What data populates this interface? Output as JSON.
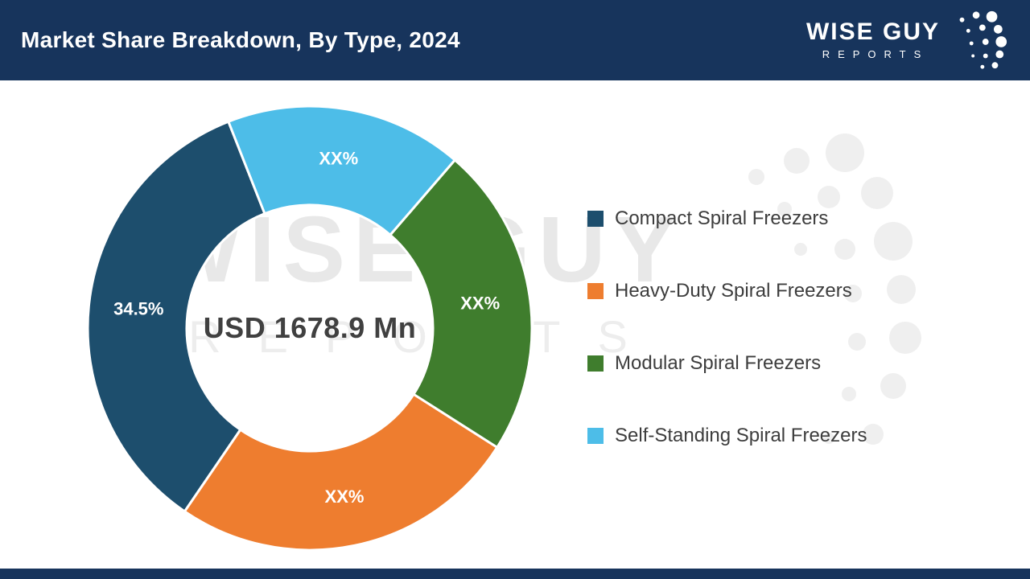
{
  "header": {
    "title": "Market Share Breakdown, By Type, 2024",
    "logo": {
      "line1": "WISE GUY",
      "line2": "REPORTS"
    }
  },
  "brand": {
    "navy": "#17345c"
  },
  "watermark": {
    "line1": "WISE GUY",
    "line2": "REPORTS"
  },
  "chart_data": {
    "type": "pie",
    "subtype": "donut",
    "title": "Market Share Breakdown, By Type, 2024",
    "center_label": "USD 1678.9 Mn",
    "legend_position": "right",
    "slice_label_color": "#ffffff",
    "start_angle_deg": 338.5,
    "direction": "counterclockwise",
    "series": [
      {
        "name": "Compact Spiral Freezers",
        "value": 34.5,
        "display_label": "34.5%",
        "color": "#1d4e6d"
      },
      {
        "name": "Heavy-Duty Spiral Freezers",
        "value": 25.5,
        "display_label": "XX%",
        "color": "#ee7d2f"
      },
      {
        "name": "Modular Spiral Freezers",
        "value": 22.7,
        "display_label": "XX%",
        "color": "#3f7d2d"
      },
      {
        "name": "Self-Standing Spiral Freezers",
        "value": 17.3,
        "display_label": "XX%",
        "color": "#4dbde8"
      }
    ]
  }
}
